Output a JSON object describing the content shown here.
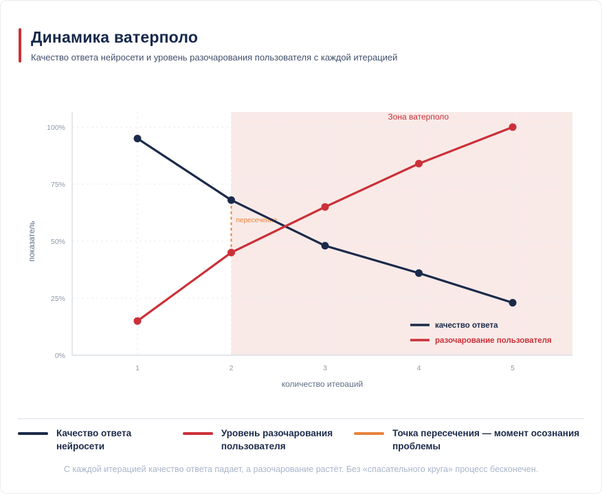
{
  "header": {
    "title": "Динамика ватерполо",
    "subtitle": "Качество ответа нейросети и уровень разочарования пользователя с каждой итерацией"
  },
  "chart_data": {
    "type": "line",
    "x": [
      1,
      2,
      3,
      4,
      5
    ],
    "series": [
      {
        "name": "качество ответа",
        "values": [
          95,
          68,
          48,
          36,
          23
        ],
        "color": "#1b2a4a"
      },
      {
        "name": "разочарование пользователя",
        "values": [
          15,
          45,
          65,
          84,
          100
        ],
        "color": "#cb3038"
      }
    ],
    "title": "Динамика ватерполо",
    "xlabel": "количество итераций",
    "ylabel": "показатель",
    "ylim": [
      0,
      105
    ],
    "yticks": [
      0,
      25,
      50,
      75,
      100
    ],
    "ytick_labels": [
      "0%",
      "25%",
      "50%",
      "75%",
      "100%"
    ],
    "grid": "dashed",
    "zone": {
      "label": "Зона ватерполо",
      "from_x": 2,
      "color": "#f9eae8"
    },
    "annotation": {
      "label": "пересечение",
      "x": 2,
      "y_from": 45,
      "y_to": 68,
      "color": "#e8833a"
    },
    "legend_position": "inside-bottom-right"
  },
  "legend": {
    "items": [
      {
        "label": "Качество ответа нейросети",
        "color": "#1b2a4a"
      },
      {
        "label": "Уровень разочарования пользователя",
        "color": "#cb3038"
      },
      {
        "label": "Точка пересечения — момент осознания проблемы",
        "color": "#e8833a"
      }
    ]
  },
  "footer": {
    "caption": "С каждой итерацией качество ответа падает, а разочарование растёт. Без «спасательного круга» процесс бесконечен."
  }
}
